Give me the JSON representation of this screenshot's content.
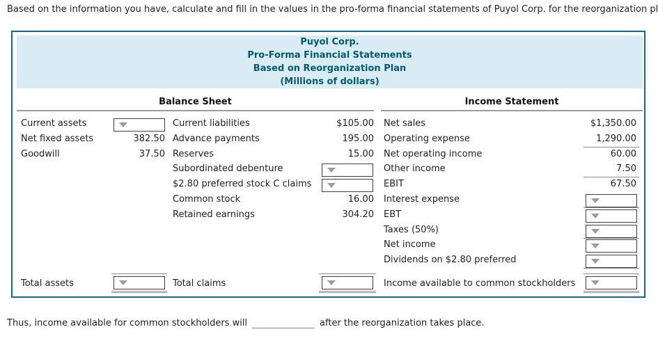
{
  "instruction": "Based on the information you have, calculate and fill in the values in the pro-forma financial statements of Puyol Corp. for the reorganization plan.",
  "header": {
    "line1": "Puyol Corp.",
    "line2": "Pro-Forma Financial Statements",
    "line3": "Based on Reorganization Plan",
    "line4": "(Millions of dollars)"
  },
  "balance_sheet": {
    "heading": "Balance Sheet",
    "left_rows": [
      {
        "label": "Current assets",
        "value": "",
        "input": true
      },
      {
        "label": "Net fixed assets",
        "value": "382.50"
      },
      {
        "label": "Goodwill",
        "value": "37.50"
      }
    ],
    "right_rows": [
      {
        "label": "Current liabilities",
        "value": "$105.00"
      },
      {
        "label": "Advance payments",
        "value": "195.00"
      },
      {
        "label": "Reserves",
        "value": "15.00"
      },
      {
        "label": "Subordinated debenture",
        "value": "",
        "input": true
      },
      {
        "label": "$2.80 preferred stock C claims",
        "value": "",
        "input": true
      },
      {
        "label": "Common stock",
        "value": "16.00"
      },
      {
        "label": "Retained earnings",
        "value": "304.20"
      }
    ],
    "total_left": {
      "label": "Total assets",
      "input": true
    },
    "total_right": {
      "label": "Total claims",
      "input": true
    }
  },
  "income_statement": {
    "heading": "Income Statement",
    "rows": [
      {
        "label": "Net sales",
        "value": "$1,350.00"
      },
      {
        "label": "Operating expense",
        "value": "1,290.00",
        "rule_below": true
      },
      {
        "label": "Net operating income",
        "value": "60.00"
      },
      {
        "label": "Other income",
        "value": "7.50",
        "rule_below": true
      },
      {
        "label": "EBIT",
        "value": "67.50"
      },
      {
        "label": "Interest expense",
        "value": "",
        "input": true,
        "rule_below": true
      },
      {
        "label": "EBT",
        "value": "",
        "input": true
      },
      {
        "label": "Taxes (50%)",
        "value": "",
        "input": true,
        "rule_below": true
      },
      {
        "label": "Net income",
        "value": "",
        "input": true
      },
      {
        "label": "Dividends on $2.80 preferred",
        "value": "",
        "input": true,
        "rule_below": true
      }
    ],
    "total_row": {
      "label": "Income available to common stockholders",
      "input": true
    }
  },
  "conclusion": {
    "text_before_blank": "Thus, income available for common stockholders will",
    "text_after_blank": "after the reorganization takes place."
  },
  "colors": {
    "panel_border": "#136788",
    "header_bg": "#d9ecf5",
    "header_text": "#055a6e",
    "rule_gray": "#8c8c8c",
    "dropdown_arrow": "#9b9b9b"
  }
}
